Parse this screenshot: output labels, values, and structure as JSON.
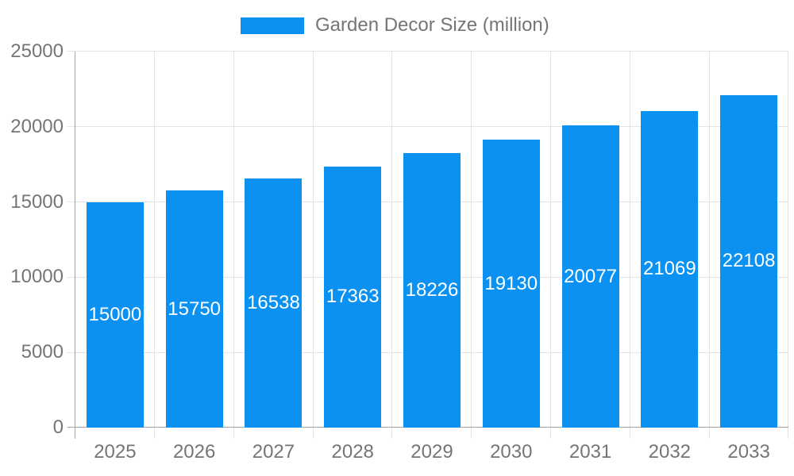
{
  "chart_data": {
    "type": "bar",
    "title": "Garden Decor Size (million)",
    "categories": [
      "2025",
      "2026",
      "2027",
      "2028",
      "2029",
      "2030",
      "2031",
      "2032",
      "2033"
    ],
    "series": [
      {
        "name": "Garden Decor Size (million)",
        "values": [
          15000,
          15750,
          16538,
          17363,
          18226,
          19130,
          20077,
          21069,
          22108
        ]
      }
    ],
    "value_labels": [
      "15000",
      "15750",
      "16538",
      "17363",
      "18226",
      "19130",
      "20077",
      "21069",
      "22108"
    ],
    "xlabel": "",
    "ylabel": "",
    "ylim": [
      0,
      25000
    ],
    "ytick_interval": 5000,
    "ytick_labels": [
      "0",
      "5000",
      "10000",
      "15000",
      "20000",
      "25000"
    ],
    "grid": true,
    "legend_position": "top-center",
    "value_labels_inside_bars": true
  },
  "colors": {
    "bar": "#0A91F2",
    "grid_line": "#e3e3e3",
    "axis_line": "#a2a2a2",
    "tick_label": "#757575",
    "legend_label": "#757575",
    "value_label": "#ffffff",
    "background": "#ffffff"
  }
}
